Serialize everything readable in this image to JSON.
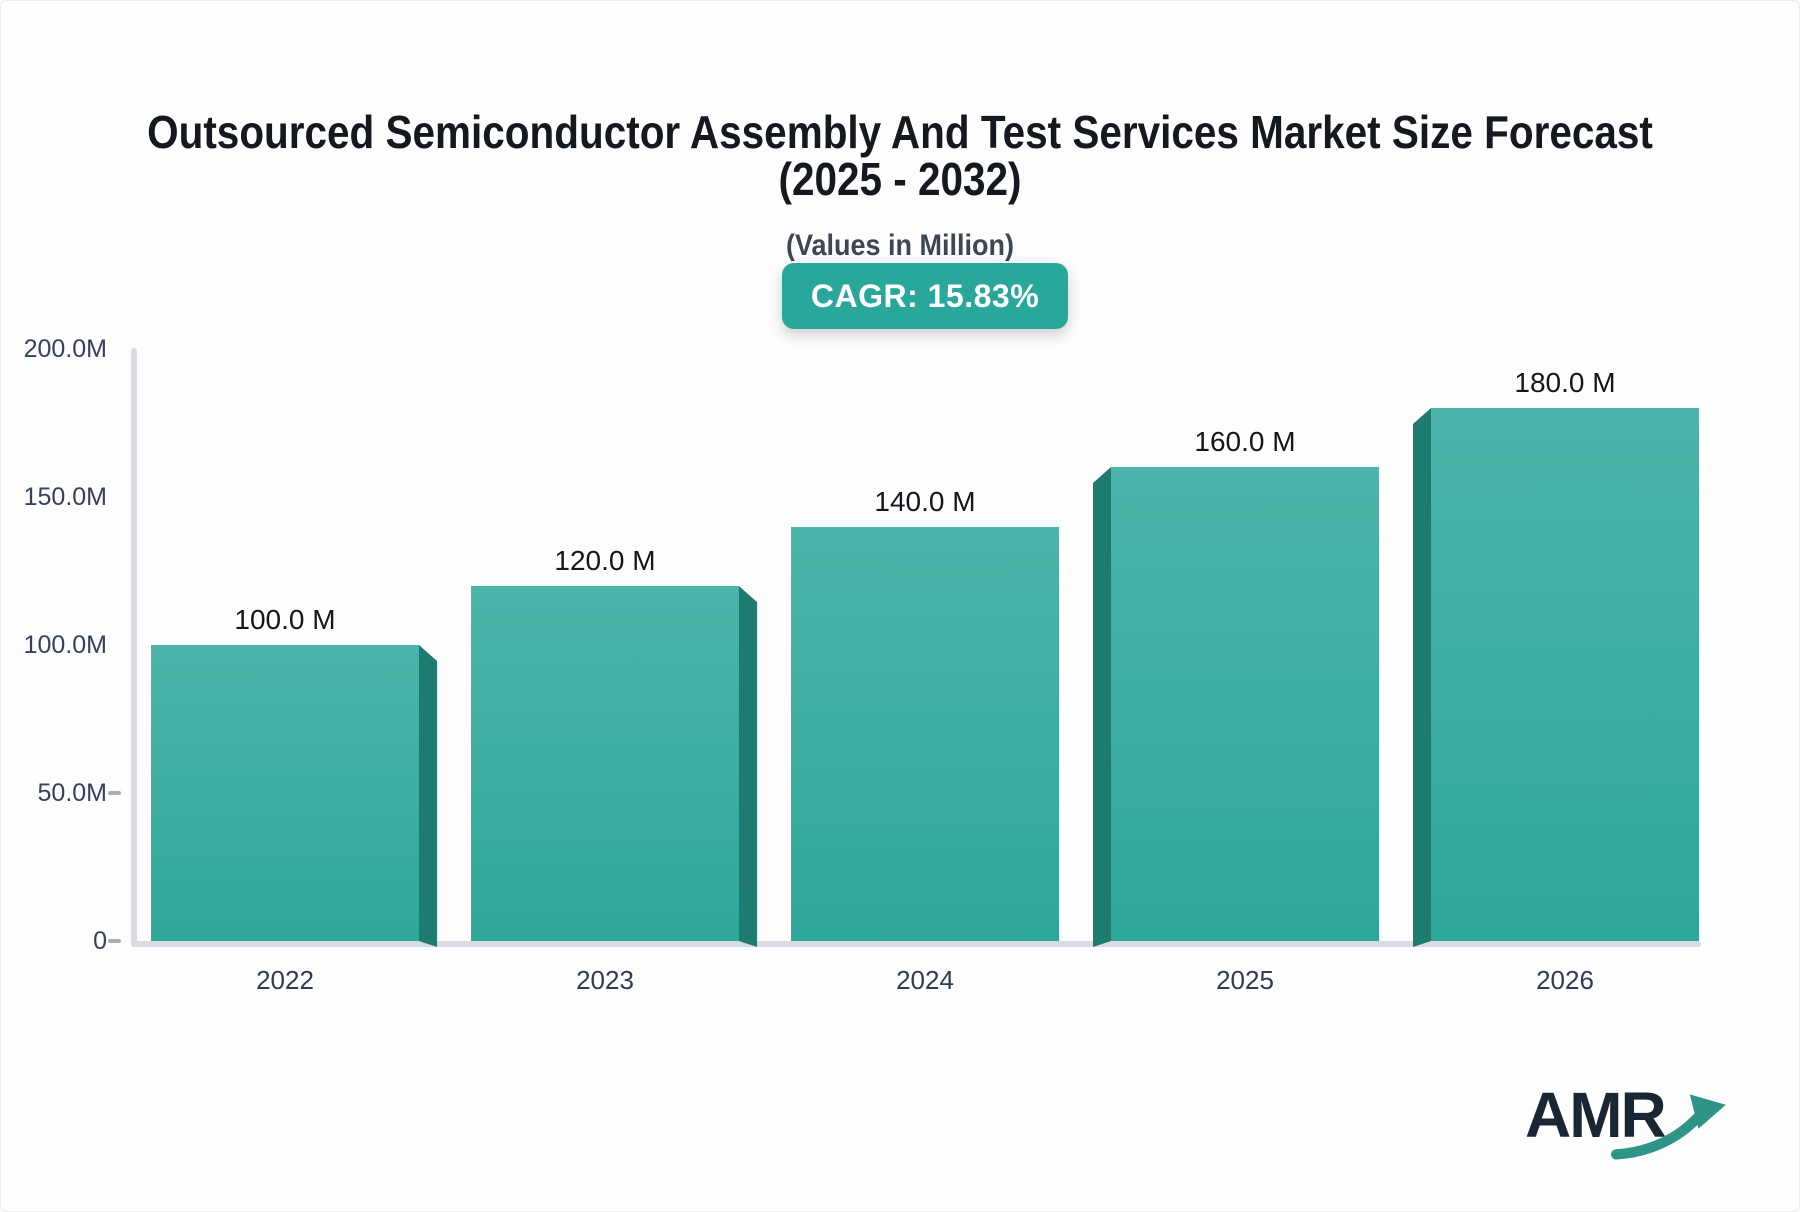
{
  "title_line1": "Outsourced Semiconductor Assembly And Test Services Market Size Forecast",
  "title_line2": "(2025 - 2032)",
  "subtitle": "(Values in Million)",
  "cagr_badge": "CAGR: 15.83%",
  "logo_text": "AMR",
  "colors": {
    "title_color": "#14181f",
    "subtitle_color": "#3d4654",
    "badge_bg": "#2aa79b",
    "bar_top": "#4cb4aa",
    "bar_bottom": "#2ea89a",
    "bar_side": "#1f7a70",
    "axis_color": "#d9dbe0",
    "tick_color": "#aaaeb6",
    "ylabel_color": "#35415e",
    "xlabel_color": "#2f3b52",
    "value_label_color": "#13171c",
    "logo_navy": "#1b2634",
    "logo_teal": "#2f9488"
  },
  "chart_data": {
    "type": "bar",
    "title": "Outsourced Semiconductor Assembly And Test Services Market Size Forecast (2025 - 2032)",
    "subtitle": "(Values in Million)",
    "cagr_percent": 15.83,
    "categories": [
      "2022",
      "2023",
      "2024",
      "2025",
      "2026"
    ],
    "values": [
      100.0,
      120.0,
      140.0,
      160.0,
      180.0
    ],
    "bar_labels": [
      "100.0 M",
      "120.0 M",
      "140.0 M",
      "160.0 M",
      "180.0 M"
    ],
    "unit": "Million",
    "xlabel": "",
    "ylabel": "",
    "ylim": [
      0,
      200
    ],
    "y_ticks": [
      "200.0M",
      "150.0M",
      "100.0M",
      "50.0M",
      "0"
    ],
    "grid": false,
    "legend": false,
    "layout": {
      "edge_sides": [
        "right",
        "right",
        "none",
        "left",
        "left"
      ],
      "tick_dashes_at": [
        "50.0M",
        "0"
      ]
    }
  }
}
